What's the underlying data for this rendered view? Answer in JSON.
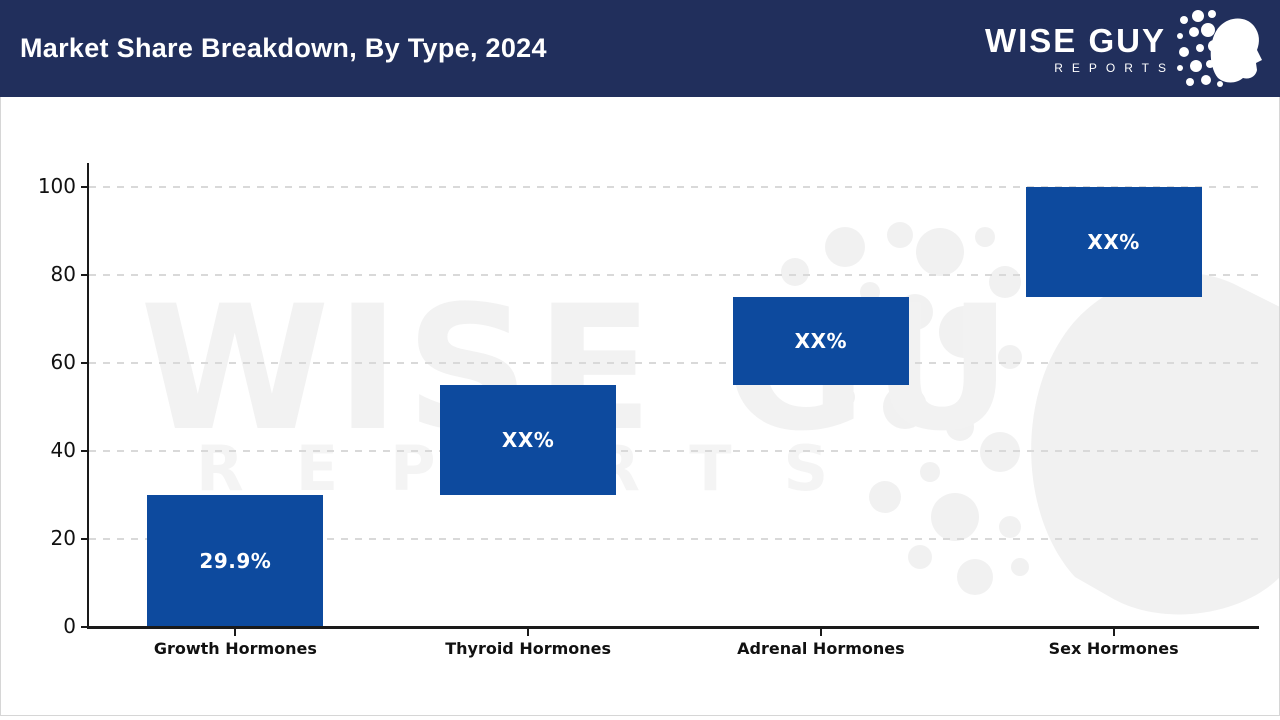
{
  "header": {
    "title": "Market Share Breakdown, By Type, 2024",
    "logo": {
      "line1": "WISE GUY",
      "line2": "REPORTS"
    }
  },
  "watermark": {
    "line1": "WISE GU",
    "line2": "REPORTS"
  },
  "chart_data": {
    "type": "bar",
    "subtype": "waterfall",
    "title": "Market Share Breakdown, By Type, 2024",
    "categories": [
      "Growth Hormones",
      "Thyroid Hormones",
      "Adrenal Hormones",
      "Sex Hormones"
    ],
    "bars": [
      {
        "category": "Growth Hormones",
        "start": 0,
        "end": 30,
        "label": "29.9%"
      },
      {
        "category": "Thyroid Hormones",
        "start": 30,
        "end": 55,
        "label": "XX%"
      },
      {
        "category": "Adrenal Hormones",
        "start": 55,
        "end": 75,
        "label": "XX%"
      },
      {
        "category": "Sex Hormones",
        "start": 75,
        "end": 100,
        "label": "XX%"
      }
    ],
    "xlabel": "",
    "ylabel": "",
    "ylim": [
      0,
      100
    ],
    "yticks": [
      0,
      20,
      40,
      60,
      80,
      100
    ],
    "grid": "horizontal-dashed",
    "legend": "none",
    "bar_color": "#0d4a9e",
    "bar_label_color": "#ffffff"
  },
  "colors": {
    "header_bg": "#212f5c",
    "axis": "#1a1a1a",
    "gridline": "#d9d9d9",
    "watermark": "#f2f2f2",
    "frame_border": "#d6d6d6"
  }
}
